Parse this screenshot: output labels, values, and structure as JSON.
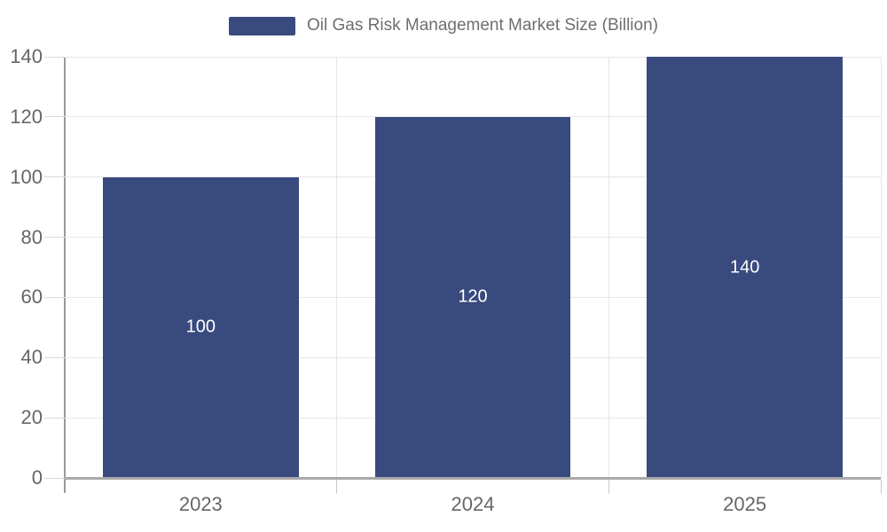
{
  "legend": {
    "label": "Oil Gas Risk Management Market Size (Billion)"
  },
  "chart_data": {
    "type": "bar",
    "title": "Oil Gas Risk Management Market Size (Billion)",
    "categories": [
      "2023",
      "2024",
      "2025"
    ],
    "series": [
      {
        "name": "Oil Gas Risk Management Market Size (Billion)",
        "values": [
          100,
          120,
          140
        ],
        "color": "#394A7F"
      }
    ],
    "xlabel": "",
    "ylabel": "",
    "ylim": [
      0,
      140
    ],
    "yticks": [
      0,
      20,
      40,
      60,
      80,
      100,
      120,
      140
    ],
    "grid": true,
    "legend_position": "top",
    "data_labels_shown": true
  },
  "colors": {
    "bar": "#394A7F",
    "grid_line": "#E6E6E6",
    "x_axis_line": "#A9A9A9",
    "y_axis_line": "#999999",
    "boundary_tick": "#C9C9C9",
    "y_tick_mark": "#D9D9D9",
    "axis_label": "#666666",
    "legend_text": "#6E6E6E",
    "bar_label": "#FFFFFF",
    "background": "#FFFFFF"
  }
}
